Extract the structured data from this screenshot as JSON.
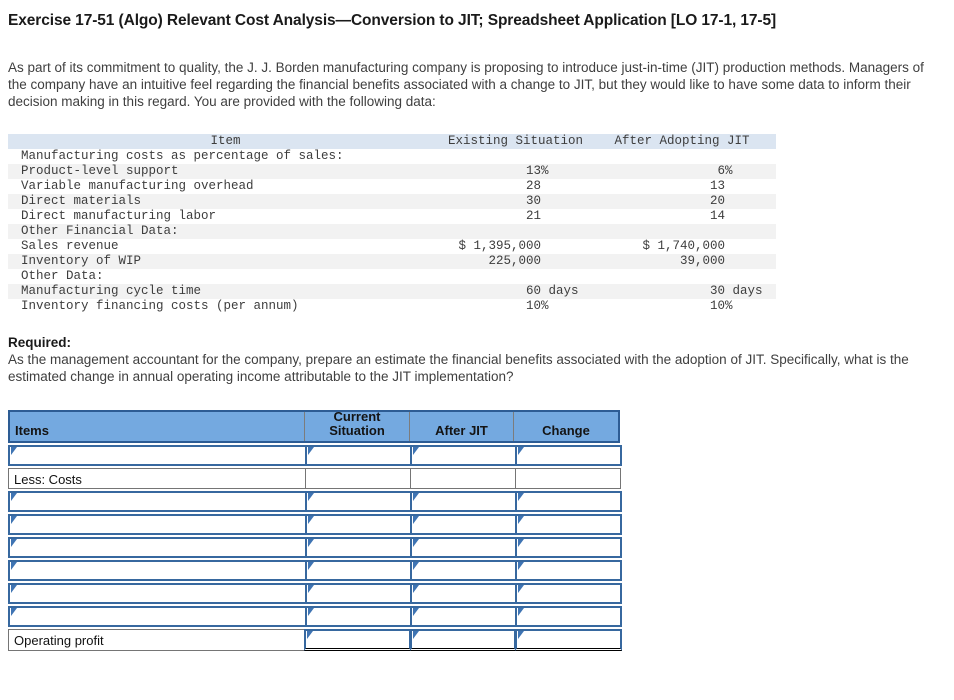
{
  "page": {
    "title": "Exercise 17-51 (Algo) Relevant Cost Analysis—Conversion to JIT; Spreadsheet Application [LO 17-1, 17-5]",
    "intro": "As part of its commitment to quality, the J. J. Borden manufacturing company is proposing to introduce just-in-time (JIT) production methods. Managers of the company have an intuitive feel regarding the financial benefits associated with a change to JIT, but they would like to have some data to inform their decision making in this regard. You are provided with the following data:",
    "required_label": "Required:",
    "required_text": "As the management accountant for the company, prepare an estimate the financial benefits associated with the adoption of JIT. Specifically, what is the estimated change in annual operating income attributable to the JIT implementation?"
  },
  "colors": {
    "answer_header_bg": "#74a9e0",
    "answer_border_blue": "#37689f",
    "data_header_bg": "#dbe5f1",
    "stripe_bg": "#f2f2f2"
  },
  "data_table": {
    "headers": [
      "Item",
      "Existing Situation",
      "After Adopting JIT"
    ],
    "rows": [
      {
        "label": "Manufacturing costs as percentage of sales:"
      },
      {
        "label": "Product-level support",
        "existing": "13",
        "existing_sfx": "%",
        "after": "6",
        "after_sfx": "%"
      },
      {
        "label": "Variable manufacturing overhead",
        "existing": "28",
        "after": "13"
      },
      {
        "label": "Direct materials",
        "existing": "30",
        "after": "20"
      },
      {
        "label": "Direct manufacturing labor",
        "existing": "21",
        "after": "14"
      },
      {
        "label": "Other Financial Data:"
      },
      {
        "label": "Sales revenue",
        "existing": "$ 1,395,000",
        "after": "$ 1,740,000"
      },
      {
        "label": "Inventory of WIP",
        "existing": "225,000",
        "after": "39,000"
      },
      {
        "label": "Other Data:"
      },
      {
        "label": "Manufacturing cycle time",
        "existing": "60",
        "existing_sfx": " days",
        "after": "30",
        "after_sfx": " days"
      },
      {
        "label": "Inventory financing costs (per annum)",
        "existing": "10",
        "existing_sfx": "%",
        "after": "10",
        "after_sfx": "%"
      }
    ]
  },
  "answer_table": {
    "headers": [
      "Items",
      "Current Situation",
      "After JIT",
      "Change"
    ],
    "less_costs_label": "Less: Costs",
    "operating_profit_label": "Operating profit"
  }
}
